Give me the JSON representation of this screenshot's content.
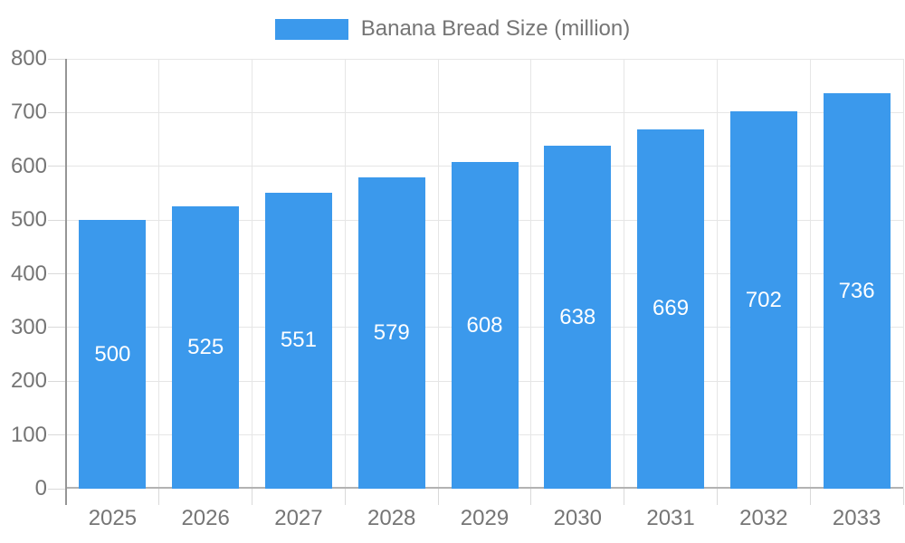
{
  "legend": {
    "label": "Banana Bread Size (million)"
  },
  "chart_data": {
    "type": "bar",
    "title": "Banana Bread Size (million)",
    "categories": [
      "2025",
      "2026",
      "2027",
      "2028",
      "2029",
      "2030",
      "2031",
      "2032",
      "2033"
    ],
    "values": [
      500,
      525,
      551,
      579,
      608,
      638,
      669,
      702,
      736
    ],
    "value_labels": [
      "500",
      "525",
      "551",
      "579",
      "608",
      "638",
      "669",
      "702",
      "736"
    ],
    "xlabel": "",
    "ylabel": "",
    "ylim": [
      0,
      800
    ],
    "yticks": [
      0,
      100,
      200,
      300,
      400,
      500,
      600,
      700,
      800
    ],
    "grid": true,
    "legend_position": "top-center",
    "colors": {
      "bar": "#3b99ec",
      "axis_text": "#757575",
      "value_label": "#ffffff",
      "gridline": "#e6e6e6",
      "tick": "#d9d9d9",
      "x_axis_line": "#b3b3b3",
      "y_axis_line": "#969696"
    }
  }
}
